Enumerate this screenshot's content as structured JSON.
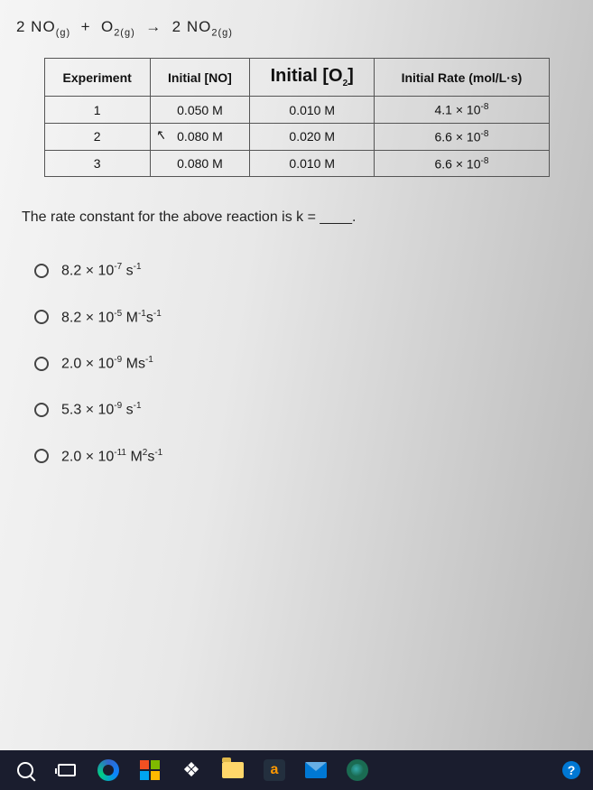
{
  "equation": "2 NO(g) + O₂(g) → 2 NO₂(g)",
  "table": {
    "headers": {
      "experiment": "Experiment",
      "initial_no": "Initial [NO]",
      "initial_o2": "Initial [O₂]",
      "initial_rate": "Initial Rate (mol/L·s)"
    },
    "rows": [
      {
        "exp": "1",
        "no": "0.050 M",
        "o2": "0.010 M",
        "rate": "4.1 × 10⁻⁸"
      },
      {
        "exp": "2",
        "no": "0.080 M",
        "o2": "0.020 M",
        "rate": "6.6 × 10⁻⁸"
      },
      {
        "exp": "3",
        "no": "0.080 M",
        "o2": "0.010 M",
        "rate": "6.6 × 10⁻⁸"
      }
    ]
  },
  "question": "The rate constant for the above reaction is k = ____.",
  "options": [
    "8.2 × 10⁻⁷ s⁻¹",
    "8.2 × 10⁻⁵ M⁻¹s⁻¹",
    "2.0 × 10⁻⁹ Ms⁻¹",
    "5.3 × 10⁻⁹ s⁻¹",
    "2.0 × 10⁻¹¹ M²s⁻¹"
  ],
  "taskbar": {
    "search": "Search",
    "taskview": "Task View",
    "edge": "Microsoft Edge",
    "store": "Microsoft Store",
    "dropbox": "Dropbox",
    "explorer": "File Explorer",
    "amazon": "Amazon",
    "mail": "Mail",
    "groove": "Groove Music",
    "help": "Get Help"
  }
}
